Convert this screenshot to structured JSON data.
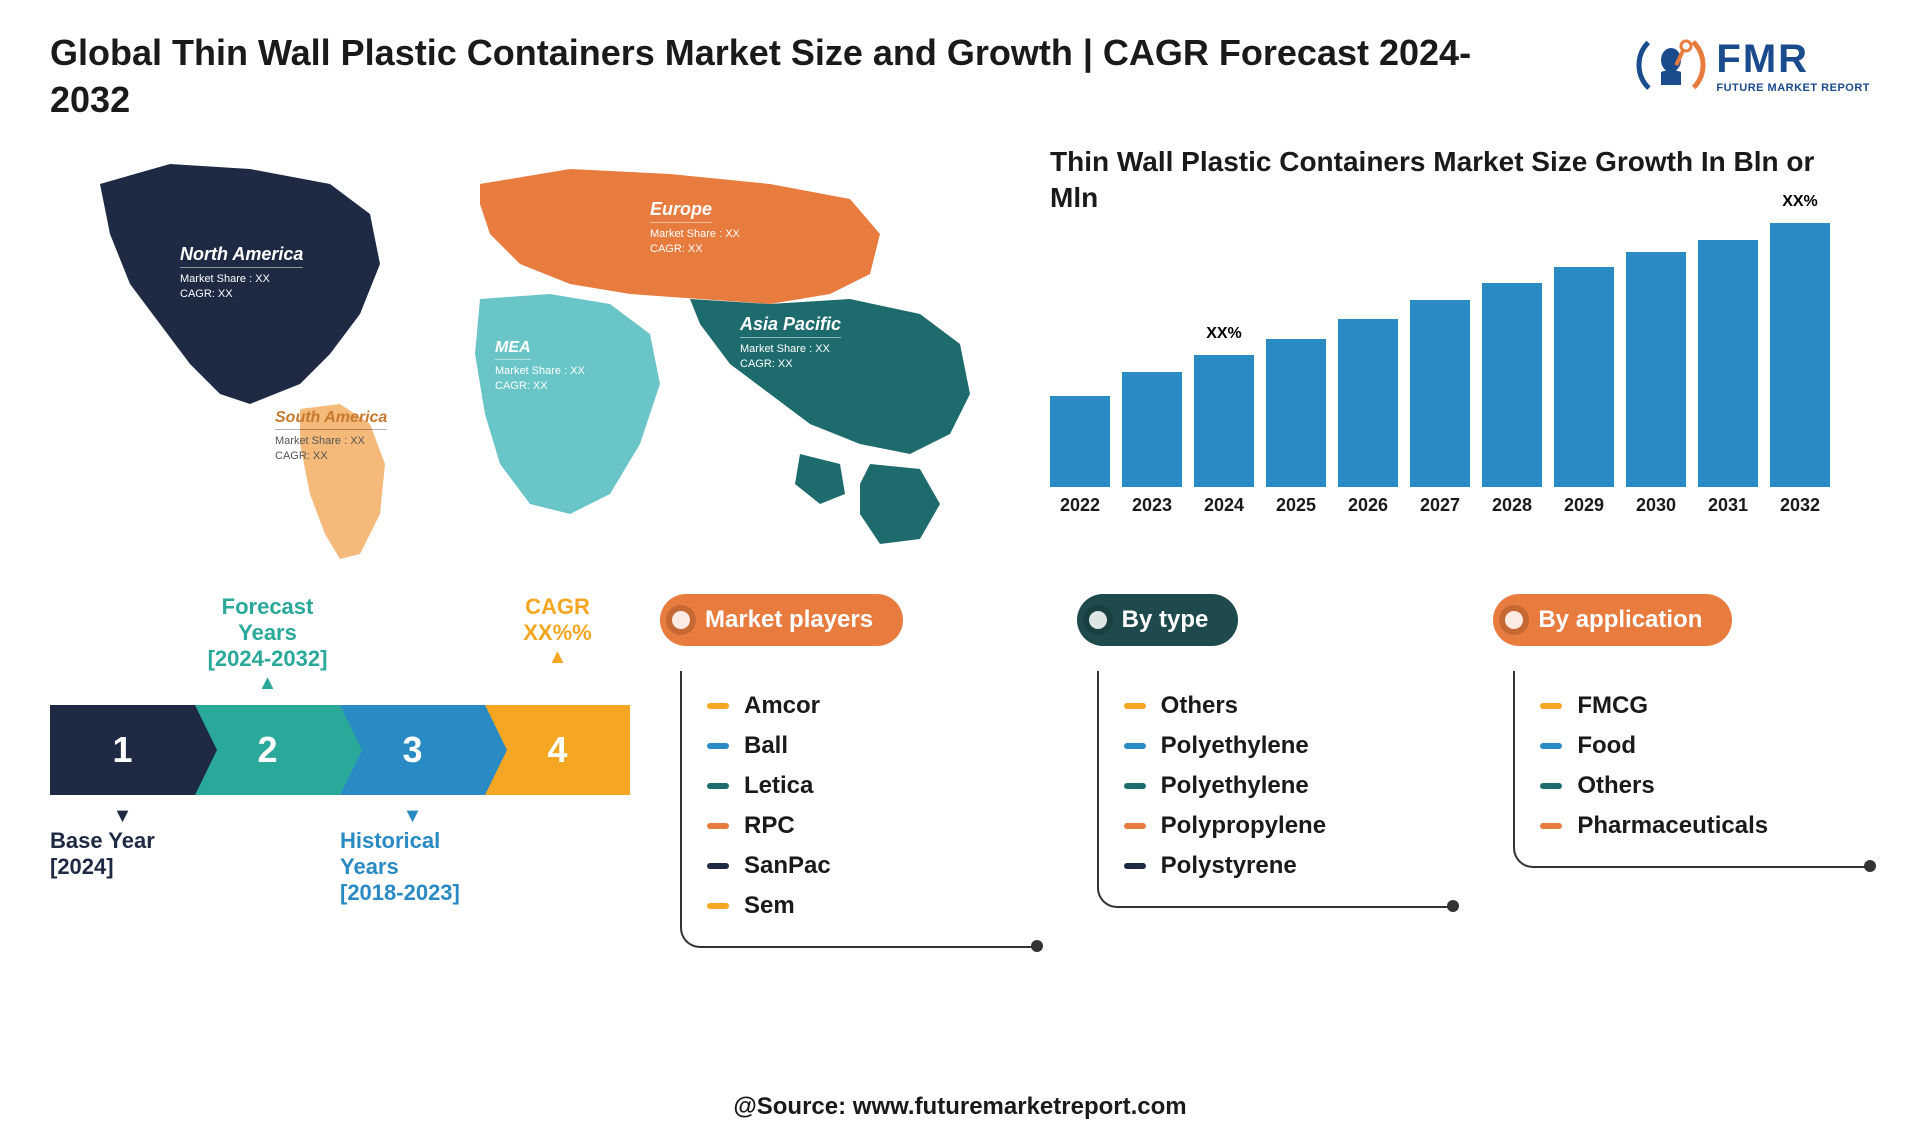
{
  "title": "Global Thin Wall Plastic Containers Market Size and Growth | CAGR Forecast 2024-2032",
  "logo": {
    "main": "FMR",
    "sub": "FUTURE MARKET REPORT"
  },
  "map": {
    "regions": [
      {
        "key": "na",
        "name": "North America",
        "share": "Market Share : XX",
        "cagr": "CAGR: XX",
        "color": "#1e2a44"
      },
      {
        "key": "sa",
        "name": "South America",
        "share": "Market Share : XX",
        "cagr": "CAGR: XX",
        "color": "#f5b97a"
      },
      {
        "key": "eu",
        "name": "Europe",
        "share": "Market Share : XX",
        "cagr": "CAGR: XX",
        "color": "#e87b3e"
      },
      {
        "key": "mea",
        "name": "MEA",
        "share": "Market Share : XX",
        "cagr": "CAGR: XX",
        "color": "#6ac5c8"
      },
      {
        "key": "ap",
        "name": "Asia Pacific",
        "share": "Market Share : XX",
        "cagr": "CAGR: XX",
        "color": "#1e6b6e"
      }
    ]
  },
  "chart": {
    "title": "Thin Wall Plastic Containers Market Size Growth In Bln or Mln",
    "years": [
      "2022",
      "2023",
      "2024",
      "2025",
      "2026",
      "2027",
      "2028",
      "2029",
      "2030",
      "2031",
      "2032"
    ],
    "heights_pct": [
      38,
      48,
      55,
      62,
      70,
      78,
      85,
      92,
      98,
      103,
      110
    ],
    "bar_color": "#2a8bc4",
    "label_2024": "XX%",
    "label_2032": "XX%"
  },
  "timeline": {
    "items": [
      {
        "num": "1",
        "color": "#1e2a44",
        "arrow": "▼",
        "arrow_color": "#1e2a44",
        "label_pos": "bottom",
        "label_title": "Base Year",
        "label_sub": "[2024]",
        "label_color": "#1e2a44"
      },
      {
        "num": "2",
        "color": "#2aa89a",
        "arrow": "▲",
        "arrow_color": "#2aa89a",
        "label_pos": "top",
        "label_title": "Forecast Years",
        "label_sub": "[2024-2032]",
        "label_color": "#2aa89a"
      },
      {
        "num": "3",
        "color": "#2a8bc4",
        "arrow": "▼",
        "arrow_color": "#2a8bc4",
        "label_pos": "bottom",
        "label_title": "Historical Years",
        "label_sub": "[2018-2023]",
        "label_color": "#2a8bc4"
      },
      {
        "num": "4",
        "color": "#f5a623",
        "arrow": "▲",
        "arrow_color": "#f5a623",
        "label_pos": "top",
        "label_title": "CAGR",
        "label_sub": "XX%%",
        "label_color": "#f5a623"
      }
    ]
  },
  "categories": [
    {
      "header": "Market players",
      "header_bg": "#e87b3e",
      "items": [
        {
          "label": "Amcor",
          "color": "#f5a623"
        },
        {
          "label": "Ball",
          "color": "#2a8bc4"
        },
        {
          "label": "Letica",
          "color": "#1e6b6e"
        },
        {
          "label": "RPC",
          "color": "#e87b3e"
        },
        {
          "label": "SanPac",
          "color": "#1e2a44"
        },
        {
          "label": "Sem",
          "color": "#f5a623"
        }
      ]
    },
    {
      "header": "By type",
      "header_bg": "#1e4a4d",
      "items": [
        {
          "label": "Others",
          "color": "#f5a623"
        },
        {
          "label": "Polyethylene",
          "color": "#2a8bc4"
        },
        {
          "label": "Polyethylene",
          "color": "#1e6b6e"
        },
        {
          "label": "Polypropylene",
          "color": "#e87b3e"
        },
        {
          "label": "Polystyrene",
          "color": "#1e2a44"
        }
      ]
    },
    {
      "header": "By application",
      "header_bg": "#e87b3e",
      "items": [
        {
          "label": "FMCG",
          "color": "#f5a623"
        },
        {
          "label": "Food",
          "color": "#2a8bc4"
        },
        {
          "label": "Others",
          "color": "#1e6b6e"
        },
        {
          "label": "Pharmaceuticals",
          "color": "#e87b3e"
        }
      ]
    }
  ],
  "source": "@Source: www.futuremarketreport.com"
}
